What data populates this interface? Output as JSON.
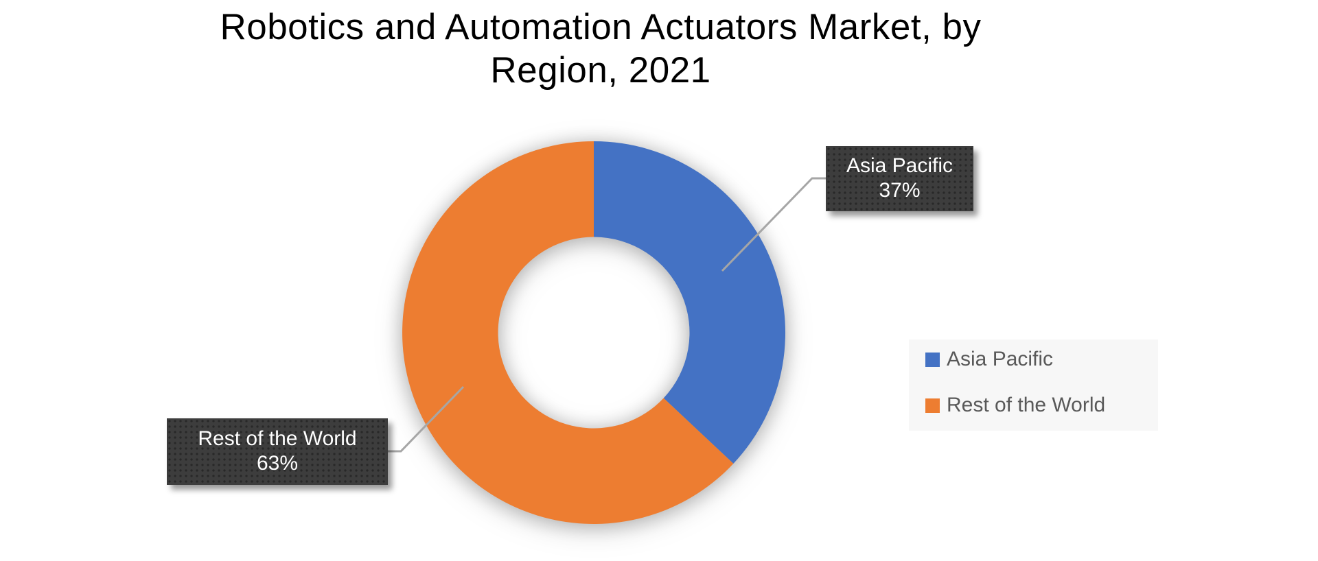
{
  "title": "Robotics and Automation Actuators Market, by Region, 2021",
  "title_lines": [
    "Robotics and Automation Actuators Market, by",
    "Region, 2021"
  ],
  "chart_data": {
    "type": "pie",
    "subtype": "donut",
    "title": "Robotics and Automation Actuators Market, by Region, 2021",
    "categories": [
      "Asia Pacific",
      "Rest of the World"
    ],
    "values": [
      37,
      63
    ],
    "unit": "%",
    "colors": [
      "#4472C4",
      "#ED7D31"
    ],
    "start_angle_deg": 0,
    "direction": "clockwise",
    "hole_ratio": 0.5,
    "legend_position": "right",
    "data_labels": [
      {
        "category": "Asia Pacific",
        "text": "Asia Pacific 37%"
      },
      {
        "category": "Rest of the World",
        "text": "Rest of the World 63%"
      }
    ]
  },
  "callouts": [
    {
      "label": "Asia Pacific",
      "value_text": "37%"
    },
    {
      "label": "Rest of the World",
      "value_text": "63%"
    }
  ],
  "legend": {
    "items": [
      {
        "label": "Asia Pacific",
        "color": "#4472C4"
      },
      {
        "label": "Rest of the World",
        "color": "#ED7D31"
      }
    ]
  },
  "style_colors": {
    "slice_blue": "#4472C4",
    "slice_orange": "#ED7D31",
    "callout_background": "#3D3D3D",
    "callout_text": "#FFFFFF",
    "leader_line": "#A6A6A6",
    "legend_background": "#F7F7F7",
    "legend_text": "#595959",
    "title_text": "#000000"
  }
}
